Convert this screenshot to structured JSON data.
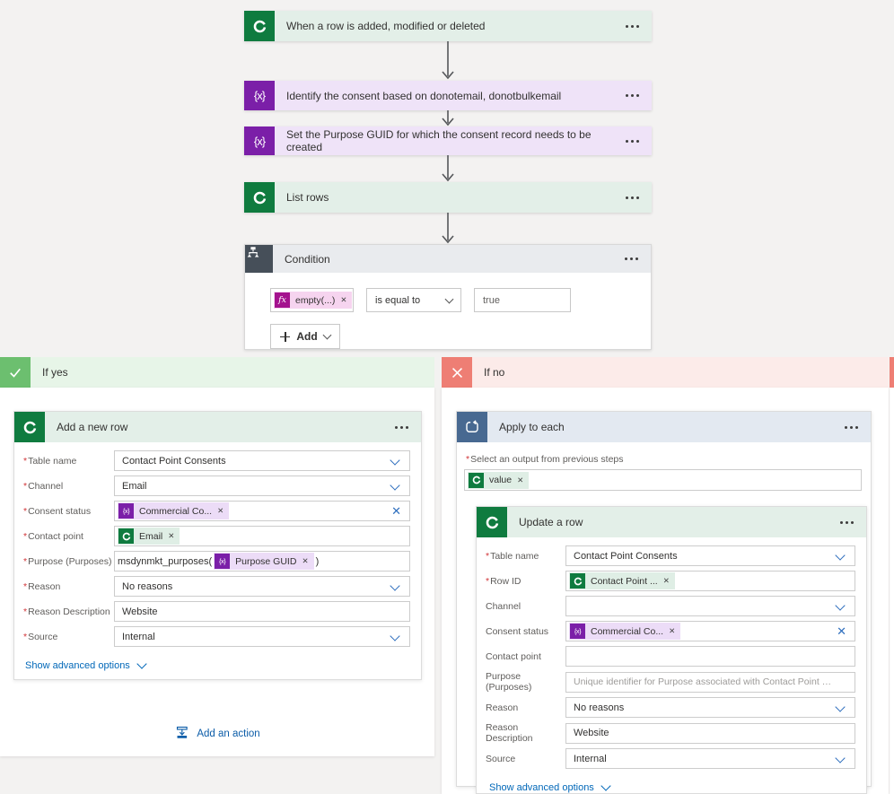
{
  "icons": {
    "expression": "{x}",
    "fx": "fx",
    "remove": "✕",
    "required": "*"
  },
  "top_blocks": [
    {
      "kind": "dataverse",
      "title": "When a row is added, modified or deleted"
    },
    {
      "kind": "expression",
      "title": "Identify the consent based on donotemail, donotbulkemail"
    },
    {
      "kind": "expression",
      "title": "Set the Purpose GUID for which the consent record needs to be created"
    },
    {
      "kind": "dataverse",
      "title": "List rows"
    }
  ],
  "condition": {
    "title": "Condition",
    "expression_token": {
      "kind": "fx",
      "text": "empty(...)"
    },
    "operator": "is equal to",
    "value": "true",
    "add_label": "Add"
  },
  "branches": {
    "if_yes": {
      "label": "If yes",
      "action": {
        "title": "Add a new row",
        "fields": [
          {
            "label": "Table name",
            "required": true,
            "type": "dropdown",
            "value": "Contact Point Consents"
          },
          {
            "label": "Channel",
            "required": true,
            "type": "dropdown",
            "value": "Email"
          },
          {
            "label": "Consent status",
            "required": true,
            "type": "token",
            "token": {
              "kind": "expression",
              "text": "Commercial Co..."
            },
            "clearable": true
          },
          {
            "label": "Contact point",
            "required": true,
            "type": "token",
            "token": {
              "kind": "dataverse",
              "text": "Email"
            }
          },
          {
            "label": "Purpose (Purposes)",
            "required": true,
            "type": "mixed",
            "prefix": "msdynmkt_purposes(",
            "token": {
              "kind": "expression",
              "text": "Purpose GUID"
            },
            "suffix": ")"
          },
          {
            "label": "Reason",
            "required": true,
            "type": "dropdown",
            "value": "No reasons"
          },
          {
            "label": "Reason Description",
            "required": true,
            "type": "text",
            "value": "Website"
          },
          {
            "label": "Source",
            "required": true,
            "type": "dropdown",
            "value": "Internal"
          }
        ],
        "show_advanced": "Show advanced options"
      },
      "add_action": "Add an action"
    },
    "if_no": {
      "label": "If no",
      "apply_to_each": {
        "title": "Apply to each",
        "select_output_label": "Select an output from previous steps",
        "output_token": {
          "kind": "dataverse",
          "text": "value"
        },
        "action": {
          "title": "Update a row",
          "fields": [
            {
              "label": "Table name",
              "required": true,
              "type": "dropdown",
              "value": "Contact Point Consents"
            },
            {
              "label": "Row ID",
              "required": true,
              "type": "token",
              "token": {
                "kind": "dataverse",
                "text": "Contact Point ..."
              }
            },
            {
              "label": "Channel",
              "required": false,
              "type": "dropdown",
              "value": ""
            },
            {
              "label": "Consent status",
              "required": false,
              "type": "token",
              "token": {
                "kind": "expression",
                "text": "Commercial Co..."
              },
              "clearable": true
            },
            {
              "label": "Contact point",
              "required": false,
              "type": "text",
              "value": ""
            },
            {
              "label": "Purpose (Purposes)",
              "required": false,
              "type": "text",
              "value": "",
              "placeholder": "Unique identifier for Purpose associated with Contact Point Consent."
            },
            {
              "label": "Reason",
              "required": false,
              "type": "dropdown",
              "value": "No reasons"
            },
            {
              "label": "Reason Description",
              "required": false,
              "type": "text",
              "value": "Website"
            },
            {
              "label": "Source",
              "required": false,
              "type": "dropdown",
              "value": "Internal"
            }
          ],
          "show_advanced": "Show advanced options"
        }
      }
    }
  },
  "colors": {
    "dataverse_green": "#0f7b3f",
    "expression_purple": "#7b1fa8",
    "fx_magenta": "#a4128e",
    "condition_gray": "#464f59",
    "apply_blue": "#486991",
    "if_yes_green": "#6cbf6f",
    "if_no_red": "#ee7e74",
    "link_blue": "#0067b8"
  }
}
